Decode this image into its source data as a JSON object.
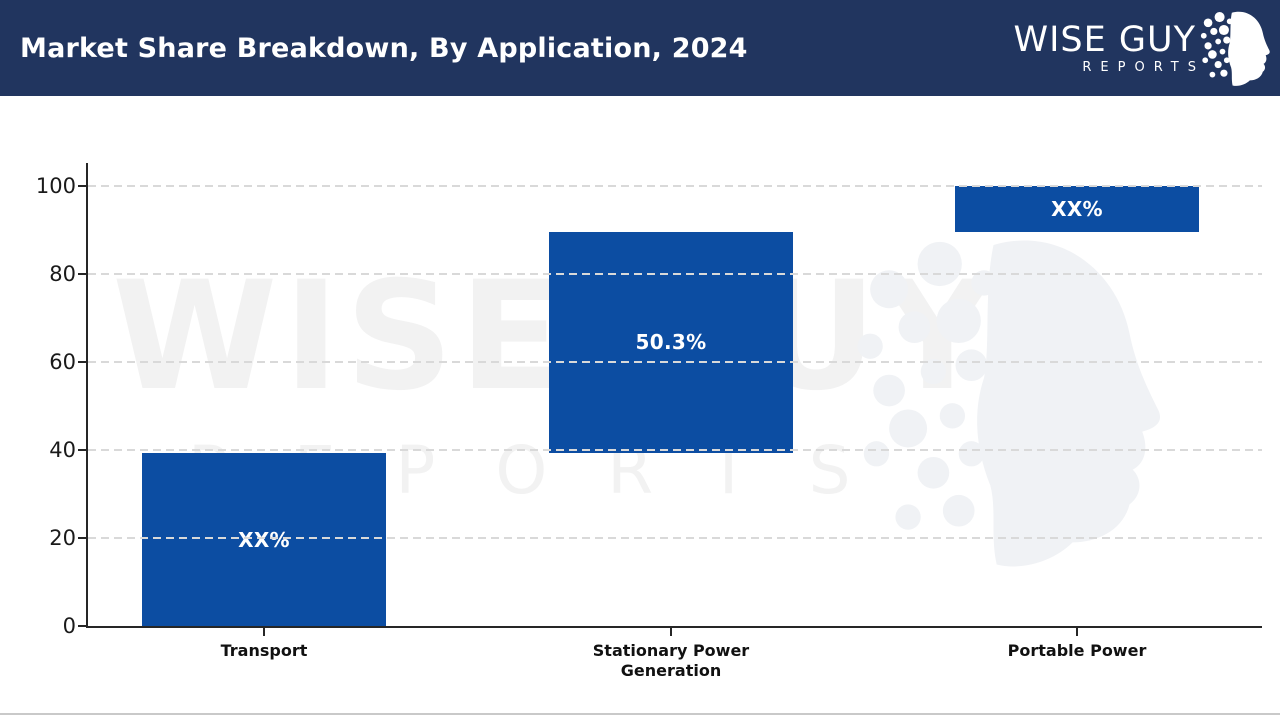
{
  "header": {
    "title": "Market Share Breakdown, By Application, 2024",
    "bg_color": "#21355f",
    "logo": {
      "line1": "WISE GUY",
      "line2": "REPORTS"
    }
  },
  "watermark": {
    "line1": "WISE GUY",
    "line2": "REPORTS"
  },
  "chart_data": {
    "type": "bar",
    "subtype": "waterfall",
    "title": "Market Share Breakdown, By Application, 2024",
    "categories": [
      "Transport",
      "Stationary Power Generation",
      "Portable Power"
    ],
    "category_lines": [
      [
        "Transport"
      ],
      [
        "Stationary Power",
        "Generation"
      ],
      [
        "Portable Power"
      ]
    ],
    "segments": [
      {
        "category": "Transport",
        "label": "XX%",
        "start": 0,
        "end": 39.3
      },
      {
        "category": "Stationary Power Generation",
        "label": "50.3%",
        "start": 39.3,
        "end": 89.6
      },
      {
        "category": "Portable Power",
        "label": "XX%",
        "start": 89.6,
        "end": 100
      }
    ],
    "ylim": [
      0,
      100
    ],
    "yticks": [
      0,
      20,
      40,
      60,
      80,
      100
    ],
    "grid": "horizontal-dashed",
    "bar_color": "#0c4da2",
    "bar_label_color": "#ffffff",
    "gridline_color": "#d9d9d9",
    "axis_color": "#262626"
  }
}
